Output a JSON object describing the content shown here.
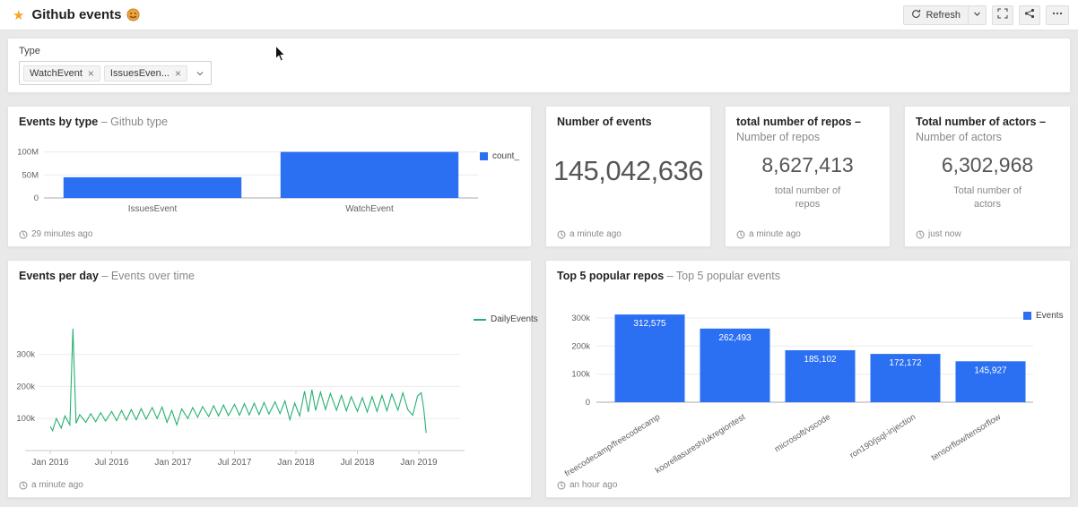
{
  "header": {
    "title": "Github events",
    "emoji": "😊",
    "buttons": {
      "refresh": "Refresh"
    }
  },
  "icons": {
    "star": "★",
    "close": "×"
  },
  "filter_bar": {
    "label": "Type",
    "chips": [
      {
        "label": "WatchEvent"
      },
      {
        "label": "IssuesEven..."
      }
    ]
  },
  "tiles": {
    "events_by_type": {
      "title": "Events by type",
      "subtitle": "– Github type",
      "legend": "count_",
      "footer": "29 minutes ago"
    },
    "number_of_events": {
      "title": "Number of events",
      "value": "145,042,636",
      "footer": "a minute ago"
    },
    "total_repos": {
      "title": "total number of repos –",
      "subtitle": "Number of repos",
      "value": "8,627,413",
      "caption": "total number of repos",
      "footer": "a minute ago"
    },
    "total_actors": {
      "title": "Total number of actors –",
      "subtitle": "Number of actors",
      "value": "6,302,968",
      "caption": "Total number of actors",
      "footer": "just now"
    },
    "events_per_day": {
      "title": "Events per day",
      "subtitle": "– Events over time",
      "legend": "DailyEvents",
      "footer": "a minute ago"
    },
    "top_repos": {
      "title": "Top 5 popular repos",
      "subtitle": "– Top 5 popular events",
      "legend": "Events",
      "footer": "an hour ago"
    }
  },
  "colors": {
    "accent_blue": "#2b6ff2",
    "line_green": "#26b170",
    "star_yellow": "#f5a623"
  },
  "chart_data": [
    {
      "id": "events-by-type",
      "type": "bar",
      "title": "Events by type",
      "subtitle": "– Github type",
      "categories": [
        "IssuesEvent",
        "WatchEvent"
      ],
      "series": [
        {
          "name": "count_",
          "values": [
            45000000,
            100000000
          ]
        }
      ],
      "ylim": [
        0,
        105000000
      ],
      "yticks": [
        {
          "v": 0,
          "label": "0"
        },
        {
          "v": 50000000,
          "label": "50M"
        },
        {
          "v": 100000000,
          "label": "100M"
        }
      ],
      "legend_position": "right",
      "color": "#2b6ff2"
    },
    {
      "id": "events-per-day",
      "type": "line",
      "title": "Events per day",
      "subtitle": "– Events over time",
      "ylim": [
        0,
        430000
      ],
      "yticks": [
        {
          "v": 100000,
          "label": "100k"
        },
        {
          "v": 200000,
          "label": "200k"
        },
        {
          "v": 300000,
          "label": "300k"
        }
      ],
      "xticks": [
        {
          "t": 2016.0,
          "label": "Jan 2016"
        },
        {
          "t": 2016.5,
          "label": "Jul 2016"
        },
        {
          "t": 2017.0,
          "label": "Jan 2017"
        },
        {
          "t": 2017.5,
          "label": "Jul 2017"
        },
        {
          "t": 2018.0,
          "label": "Jan 2018"
        },
        {
          "t": 2018.5,
          "label": "Jul 2018"
        },
        {
          "t": 2019.0,
          "label": "Jan 2019"
        }
      ],
      "legend_position": "right",
      "series": [
        {
          "name": "DailyEvents",
          "color": "#26b170",
          "y_units": "events per day, values in thousands",
          "points": [
            [
              2016.0,
              75
            ],
            [
              2016.02,
              62
            ],
            [
              2016.05,
              100
            ],
            [
              2016.09,
              70
            ],
            [
              2016.12,
              108
            ],
            [
              2016.16,
              80
            ],
            [
              2016.185,
              380
            ],
            [
              2016.21,
              85
            ],
            [
              2016.24,
              112
            ],
            [
              2016.29,
              88
            ],
            [
              2016.33,
              115
            ],
            [
              2016.37,
              90
            ],
            [
              2016.41,
              118
            ],
            [
              2016.45,
              92
            ],
            [
              2016.5,
              122
            ],
            [
              2016.54,
              93
            ],
            [
              2016.58,
              125
            ],
            [
              2016.62,
              95
            ],
            [
              2016.66,
              128
            ],
            [
              2016.7,
              96
            ],
            [
              2016.74,
              131
            ],
            [
              2016.78,
              98
            ],
            [
              2016.83,
              134
            ],
            [
              2016.87,
              100
            ],
            [
              2016.91,
              136
            ],
            [
              2016.95,
              88
            ],
            [
              2016.99,
              125
            ],
            [
              2017.03,
              80
            ],
            [
              2017.07,
              130
            ],
            [
              2017.12,
              100
            ],
            [
              2017.16,
              134
            ],
            [
              2017.2,
              104
            ],
            [
              2017.24,
              137
            ],
            [
              2017.29,
              106
            ],
            [
              2017.33,
              140
            ],
            [
              2017.37,
              108
            ],
            [
              2017.41,
              142
            ],
            [
              2017.45,
              109
            ],
            [
              2017.5,
              144
            ],
            [
              2017.54,
              110
            ],
            [
              2017.58,
              146
            ],
            [
              2017.62,
              111
            ],
            [
              2017.66,
              148
            ],
            [
              2017.7,
              112
            ],
            [
              2017.74,
              150
            ],
            [
              2017.78,
              114
            ],
            [
              2017.83,
              152
            ],
            [
              2017.87,
              115
            ],
            [
              2017.91,
              155
            ],
            [
              2017.95,
              96
            ],
            [
              2017.99,
              148
            ],
            [
              2018.03,
              108
            ],
            [
              2018.07,
              185
            ],
            [
              2018.1,
              120
            ],
            [
              2018.13,
              190
            ],
            [
              2018.16,
              125
            ],
            [
              2018.2,
              182
            ],
            [
              2018.24,
              128
            ],
            [
              2018.28,
              178
            ],
            [
              2018.33,
              126
            ],
            [
              2018.37,
              172
            ],
            [
              2018.41,
              124
            ],
            [
              2018.45,
              168
            ],
            [
              2018.5,
              122
            ],
            [
              2018.54,
              165
            ],
            [
              2018.58,
              120
            ],
            [
              2018.62,
              168
            ],
            [
              2018.66,
              122
            ],
            [
              2018.7,
              172
            ],
            [
              2018.74,
              124
            ],
            [
              2018.78,
              176
            ],
            [
              2018.83,
              126
            ],
            [
              2018.87,
              180
            ],
            [
              2018.91,
              128
            ],
            [
              2018.95,
              110
            ],
            [
              2018.99,
              170
            ],
            [
              2019.02,
              180
            ],
            [
              2019.04,
              130
            ],
            [
              2019.06,
              55
            ]
          ]
        }
      ]
    },
    {
      "id": "top-5-popular-repos",
      "type": "bar",
      "title": "Top 5 popular repos",
      "subtitle": "– Top 5 popular events",
      "categories": [
        "freecodecamp/freecodecamp",
        "koorellasuresh/ukregiontest",
        "microsoft/vscode",
        "ron190/jsql-injection",
        "tensorflow/tensorflow"
      ],
      "series": [
        {
          "name": "Events",
          "values": [
            312575,
            262493,
            185102,
            172172,
            145927
          ]
        }
      ],
      "data_labels": [
        "312,575",
        "262,493",
        "185,102",
        "172,172",
        "145,927"
      ],
      "ylim": [
        0,
        332000
      ],
      "yticks": [
        {
          "v": 0,
          "label": "0"
        },
        {
          "v": 100000,
          "label": "100k"
        },
        {
          "v": 200000,
          "label": "200k"
        },
        {
          "v": 300000,
          "label": "300k"
        }
      ],
      "legend_position": "top-right",
      "color": "#2b6ff2"
    }
  ]
}
